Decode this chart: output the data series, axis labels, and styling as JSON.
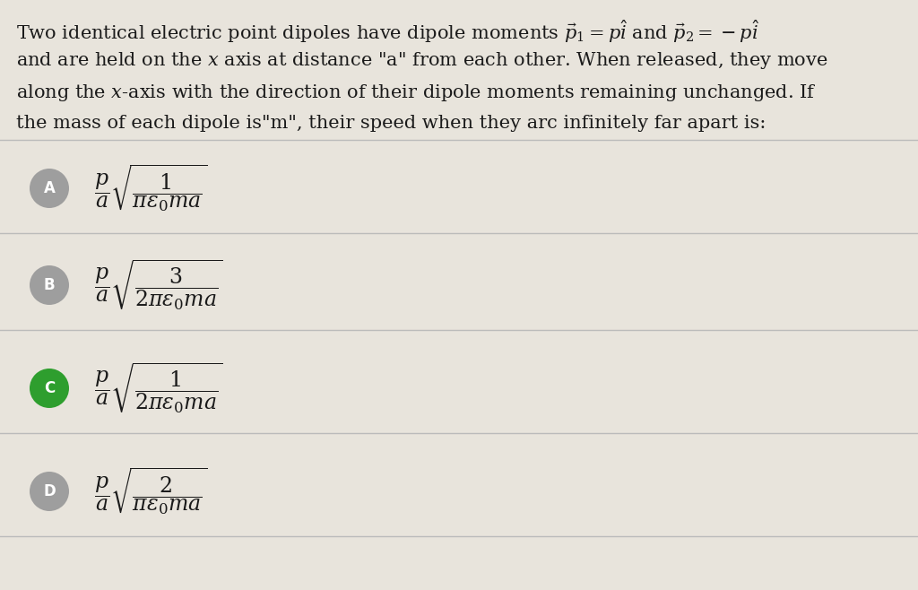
{
  "bg_color": "#d8d4cc",
  "content_bg": "#e8e4dc",
  "separator_color": "#bbbbbb",
  "selected_color": "#2e9e2e",
  "unselected_color": "#9e9e9e",
  "label_text_color": "#ffffff",
  "text_color": "#1a1a1a",
  "question_lines": [
    "Two identical electric point dipoles have dipole moments $\\vec{p}_1 = p\\hat{i}$ and $\\vec{p}_2 = -p\\hat{i}$",
    "and are held on the $x$ axis at distance \"a\" from each other. When released, they move",
    "along the $x$-axis with the direction of their dipole moments remaining unchanged. If",
    "the mass of each dipole is\"m\", their speed when they arc infinitely far apart is:"
  ],
  "options": [
    {
      "label": "A",
      "selected": false,
      "formula": "$\\dfrac{p}{a}\\sqrt{\\dfrac{1}{\\pi\\varepsilon_0 ma}}$"
    },
    {
      "label": "B",
      "selected": false,
      "formula": "$\\dfrac{p}{a}\\sqrt{\\dfrac{3}{2\\pi\\varepsilon_0 ma}}$"
    },
    {
      "label": "C",
      "selected": true,
      "formula": "$\\dfrac{p}{a}\\sqrt{\\dfrac{1}{2\\pi\\varepsilon_0 ma}}$"
    },
    {
      "label": "D",
      "selected": false,
      "formula": "$\\dfrac{p}{a}\\sqrt{\\dfrac{2}{\\pi\\varepsilon_0 ma}}$"
    }
  ],
  "question_fontsize": 15,
  "option_fontsize": 17,
  "label_fontsize": 12,
  "fig_width": 10.24,
  "fig_height": 6.58,
  "dpi": 100
}
